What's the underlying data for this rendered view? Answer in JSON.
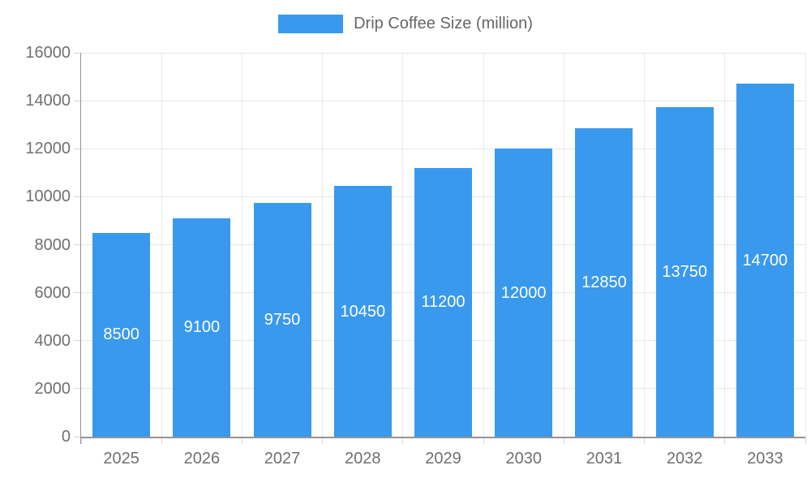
{
  "legend": {
    "label": "Drip Coffee Size (million)"
  },
  "chart_data": {
    "type": "bar",
    "title": "",
    "series_name": "Drip Coffee Size (million)",
    "categories": [
      "2025",
      "2026",
      "2027",
      "2028",
      "2029",
      "2030",
      "2031",
      "2032",
      "2033"
    ],
    "values": [
      8500,
      9100,
      9750,
      10450,
      11200,
      12000,
      12850,
      13750,
      14700
    ],
    "xlabel": "",
    "ylabel": "",
    "ylim": [
      0,
      16000
    ],
    "ytick_step": 2000,
    "grid": "on",
    "legend_position": "top",
    "value_labels": "inside-center",
    "colors": {
      "bar": "#3999ED",
      "value_label": "#FFFFFF",
      "axis_line": "#949494",
      "grid_line": "#E6E6E6",
      "tick_mark": "#D9D9D9",
      "tick_label": "#707070",
      "legend_text": "#666666",
      "background": "#FFFFFF"
    }
  }
}
